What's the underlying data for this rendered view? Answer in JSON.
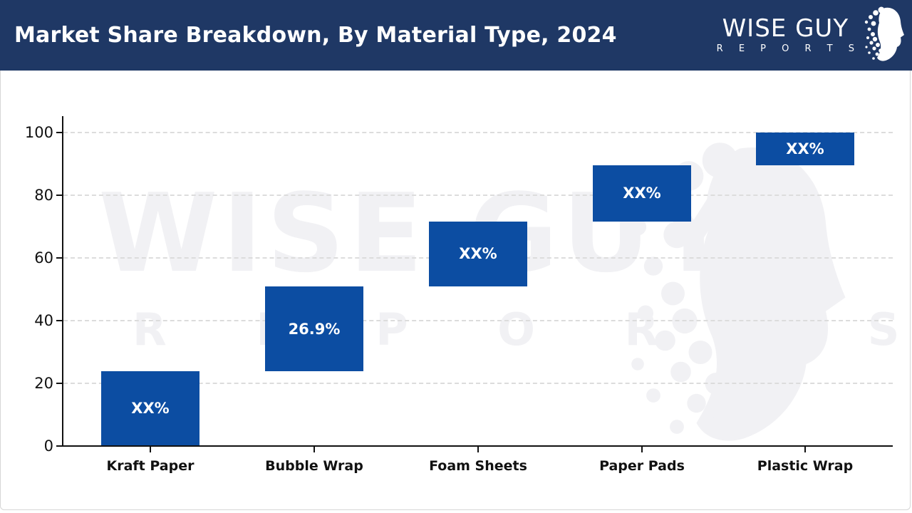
{
  "header": {
    "title": "Market Share Breakdown, By Material Type, 2024",
    "logo": {
      "brand": "WISE GUY",
      "brand_sub": "R E P O R T S"
    }
  },
  "watermark": {
    "brand": "WISE GUY",
    "brand_sub": "R E P O R T S"
  },
  "chart_data": {
    "type": "bar",
    "subtype": "waterfall-floating-bars",
    "title": "Market Share Breakdown, By Material Type, 2024",
    "categories": [
      "Kraft Paper",
      "Bubble Wrap",
      "Foam Sheets",
      "Paper Pads",
      "Plastic Wrap"
    ],
    "series": [
      {
        "name": "Market share (%)",
        "segments": [
          {
            "category": "Kraft Paper",
            "start": 0,
            "end": 23.9,
            "value_label": "XX%"
          },
          {
            "category": "Bubble Wrap",
            "start": 23.9,
            "end": 50.8,
            "value": 26.9,
            "value_label": "26.9%"
          },
          {
            "category": "Foam Sheets",
            "start": 50.8,
            "end": 71.7,
            "value_label": "XX%"
          },
          {
            "category": "Paper Pads",
            "start": 71.7,
            "end": 89.5,
            "value_label": "XX%"
          },
          {
            "category": "Plastic Wrap",
            "start": 89.5,
            "end": 100,
            "value_label": "XX%"
          }
        ]
      }
    ],
    "xlabel": "",
    "ylabel": "",
    "ylim": [
      0,
      105
    ],
    "yticks": [
      0,
      20,
      40,
      60,
      80,
      100
    ],
    "grid": "horizontal-dashed",
    "legend": "none",
    "bar_color": "#0c4da2",
    "bar_label_color": "#ffffff"
  },
  "colors": {
    "header_bg": "#1f3865",
    "bar": "#0c4da2",
    "grid": "#dcdcdc",
    "axis": "#111111",
    "watermark": "#f1f1f4",
    "frame": "#d6d6d6"
  }
}
